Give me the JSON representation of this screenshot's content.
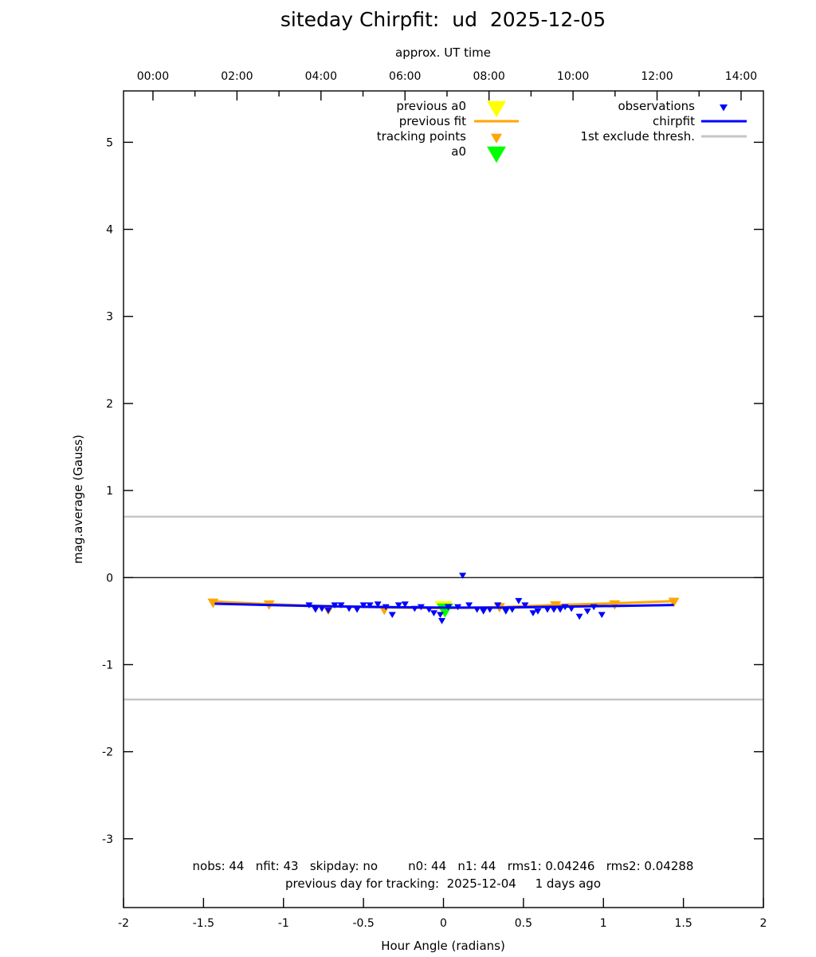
{
  "title": "siteday Chirpfit:  ud  2025-12-05",
  "colors": {
    "observations": "#0000ff",
    "chirpfit": "#0000ff",
    "tracking": "#ffa500",
    "previous_fit": "#ffa500",
    "previous_a0": "#ffff00",
    "a0": "#00ff00",
    "threshold": "#c6c6c6",
    "axis": "#000000",
    "background": "#ffffff"
  },
  "legend": {
    "left": [
      {
        "label": "previous a0",
        "marker": "triangle-big",
        "color": "#ffff00"
      },
      {
        "label": "previous fit",
        "marker": "line",
        "color": "#ffa500"
      },
      {
        "label": "tracking points",
        "marker": "triangle-med",
        "color": "#ffa500"
      },
      {
        "label": "a0",
        "marker": "triangle-big",
        "color": "#00ff00"
      }
    ],
    "right": [
      {
        "label": "observations",
        "marker": "triangle-small",
        "color": "#0000ff"
      },
      {
        "label": "chirpfit",
        "marker": "line",
        "color": "#0000ff"
      },
      {
        "label": "1st exclude thresh.",
        "marker": "line",
        "color": "#c6c6c6"
      }
    ]
  },
  "stats": {
    "line1": "nobs: 44   nfit: 43   skipday: no        n0: 44   n1: 44   rms1: 0.04246   rms2: 0.04288",
    "line2": "previous day for tracking:  2025-12-04     1 days ago"
  },
  "chart_data": {
    "type": "scatter",
    "title": "siteday Chirpfit:  ud  2025-12-05",
    "xlabel": "Hour Angle (radians)",
    "x2label": "approx. UT time",
    "ylabel": "mag.average (Gauss)",
    "xlim": [
      -2,
      2
    ],
    "ylim": [
      -3.79,
      5.59
    ],
    "grid": false,
    "legend_position": "top-inside-two-columns",
    "x_ticks": [
      -2,
      -1.5,
      -1,
      -0.5,
      0,
      0.5,
      1,
      1.5,
      2
    ],
    "x_tick_labels": [
      "-2",
      "-1.5",
      "-1",
      "-0.5",
      "0",
      "0.5",
      "1",
      "1.5",
      "2"
    ],
    "y_ticks": [
      -3,
      -2,
      -1,
      0,
      1,
      2,
      3,
      4,
      5
    ],
    "x2_axis": {
      "label": "approx. UT time",
      "major_hours": [
        0,
        2,
        4,
        6,
        8,
        10,
        12,
        14
      ],
      "major_labels": [
        "00:00",
        "02:00",
        "04:00",
        "06:00",
        "08:00",
        "10:00",
        "12:00",
        "14:00"
      ],
      "minor_hours": [
        1,
        3,
        5,
        7,
        9,
        11,
        13
      ],
      "hour0_hour_angle": -1.816,
      "hour_angle_per_hour": 0.2626
    },
    "zero_line": 0,
    "exclude_thresholds": [
      0.7,
      -1.4
    ],
    "series": [
      {
        "name": "previous fit",
        "type": "line",
        "color": "#ffa500",
        "points": [
          [
            -1.44,
            -0.275
          ],
          [
            -1.1,
            -0.305
          ],
          [
            -0.7,
            -0.33
          ],
          [
            -0.3,
            -0.345
          ],
          [
            0.0,
            -0.35
          ],
          [
            0.35,
            -0.34
          ],
          [
            0.7,
            -0.315
          ],
          [
            1.07,
            -0.295
          ],
          [
            1.44,
            -0.27
          ]
        ]
      },
      {
        "name": "previous a0",
        "type": "scatter",
        "marker": "triangle-down",
        "color": "#ffff00",
        "size": 11,
        "points": [
          [
            0.0,
            -0.33
          ]
        ]
      },
      {
        "name": "tracking points",
        "type": "scatter",
        "marker": "triangle-down",
        "color": "#ffa500",
        "size": 7,
        "points": [
          [
            -1.44,
            -0.28
          ],
          [
            -1.09,
            -0.3
          ],
          [
            -0.72,
            -0.36
          ],
          [
            -0.37,
            -0.36
          ],
          [
            0.35,
            -0.33
          ],
          [
            0.7,
            -0.31
          ],
          [
            1.07,
            -0.3
          ],
          [
            1.44,
            -0.27
          ]
        ]
      },
      {
        "name": "a0",
        "type": "scatter",
        "marker": "triangle-down",
        "color": "#00ff00",
        "size": 10.5,
        "points": [
          [
            0.01,
            -0.355
          ]
        ]
      },
      {
        "name": "observations",
        "type": "scatter",
        "marker": "triangle-down",
        "color": "#0000ff",
        "size": 4.5,
        "points": [
          [
            -0.84,
            -0.31
          ],
          [
            -0.8,
            -0.36
          ],
          [
            -0.76,
            -0.35
          ],
          [
            -0.72,
            -0.37
          ],
          [
            -0.68,
            -0.31
          ],
          [
            -0.64,
            -0.31
          ],
          [
            -0.59,
            -0.35
          ],
          [
            -0.54,
            -0.36
          ],
          [
            -0.5,
            -0.31
          ],
          [
            -0.46,
            -0.31
          ],
          [
            -0.41,
            -0.3
          ],
          [
            -0.36,
            -0.33
          ],
          [
            -0.32,
            -0.42
          ],
          [
            -0.28,
            -0.31
          ],
          [
            -0.24,
            -0.3
          ],
          [
            -0.18,
            -0.35
          ],
          [
            -0.14,
            -0.33
          ],
          [
            -0.09,
            -0.36
          ],
          [
            -0.06,
            -0.4
          ],
          [
            -0.02,
            -0.42
          ],
          [
            -0.01,
            -0.49
          ],
          [
            0.03,
            -0.33
          ],
          [
            0.09,
            -0.33
          ],
          [
            0.12,
            0.03
          ],
          [
            0.16,
            -0.31
          ],
          [
            0.21,
            -0.36
          ],
          [
            0.25,
            -0.38
          ],
          [
            0.29,
            -0.36
          ],
          [
            0.34,
            -0.31
          ],
          [
            0.39,
            -0.38
          ],
          [
            0.43,
            -0.36
          ],
          [
            0.47,
            -0.26
          ],
          [
            0.51,
            -0.31
          ],
          [
            0.56,
            -0.4
          ],
          [
            0.59,
            -0.38
          ],
          [
            0.65,
            -0.36
          ],
          [
            0.69,
            -0.36
          ],
          [
            0.73,
            -0.36
          ],
          [
            0.76,
            -0.33
          ],
          [
            0.8,
            -0.35
          ],
          [
            0.85,
            -0.44
          ],
          [
            0.9,
            -0.38
          ],
          [
            0.94,
            -0.33
          ],
          [
            0.99,
            -0.42
          ]
        ]
      },
      {
        "name": "chirpfit",
        "type": "line",
        "color": "#0000ff",
        "points": [
          [
            -1.43,
            -0.3
          ],
          [
            -1.1,
            -0.315
          ],
          [
            -0.7,
            -0.33
          ],
          [
            -0.3,
            -0.34
          ],
          [
            0.0,
            -0.345
          ],
          [
            0.35,
            -0.345
          ],
          [
            0.7,
            -0.335
          ],
          [
            1.1,
            -0.325
          ],
          [
            1.44,
            -0.315
          ]
        ]
      }
    ]
  }
}
